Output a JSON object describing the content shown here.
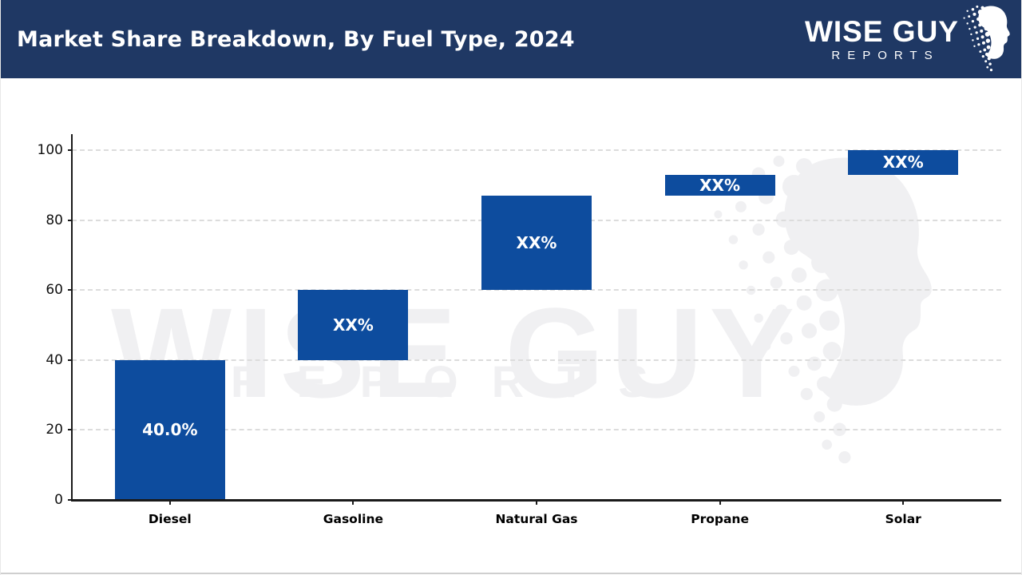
{
  "header": {
    "title": "Market Share Breakdown, By Fuel Type, 2024",
    "bg_color": "#1f3864",
    "logo": {
      "wordmark": "WISE GUY",
      "subtext": "REPORTS"
    }
  },
  "watermark": {
    "wordmark": "WISE GUY",
    "subtext": "REPORTS",
    "color": "#f0f0f2"
  },
  "chart_data": {
    "type": "bar",
    "subtype": "waterfall",
    "title": "Market Share Breakdown, By Fuel Type, 2024",
    "categories": [
      "Diesel",
      "Gasoline",
      "Natural Gas",
      "Propane",
      "Solar"
    ],
    "segments": [
      {
        "category": "Diesel",
        "start": 0,
        "end": 40,
        "label": "40.0%"
      },
      {
        "category": "Gasoline",
        "start": 40,
        "end": 60,
        "label": "XX%"
      },
      {
        "category": "Natural Gas",
        "start": 60,
        "end": 87,
        "label": "XX%"
      },
      {
        "category": "Propane",
        "start": 87,
        "end": 93,
        "label": "XX%"
      },
      {
        "category": "Solar",
        "start": 93,
        "end": 100,
        "label": "XX%"
      }
    ],
    "values_estimated_pct": [
      40,
      20,
      27,
      6,
      7
    ],
    "yticks": [
      0,
      20,
      40,
      60,
      80,
      100
    ],
    "ylim": [
      0,
      104
    ],
    "xlabel": "",
    "ylabel": "",
    "grid": "horizontal-dashed",
    "legend": "none",
    "bar_color": "#0d4c9e",
    "bar_label_color": "#ffffff"
  }
}
